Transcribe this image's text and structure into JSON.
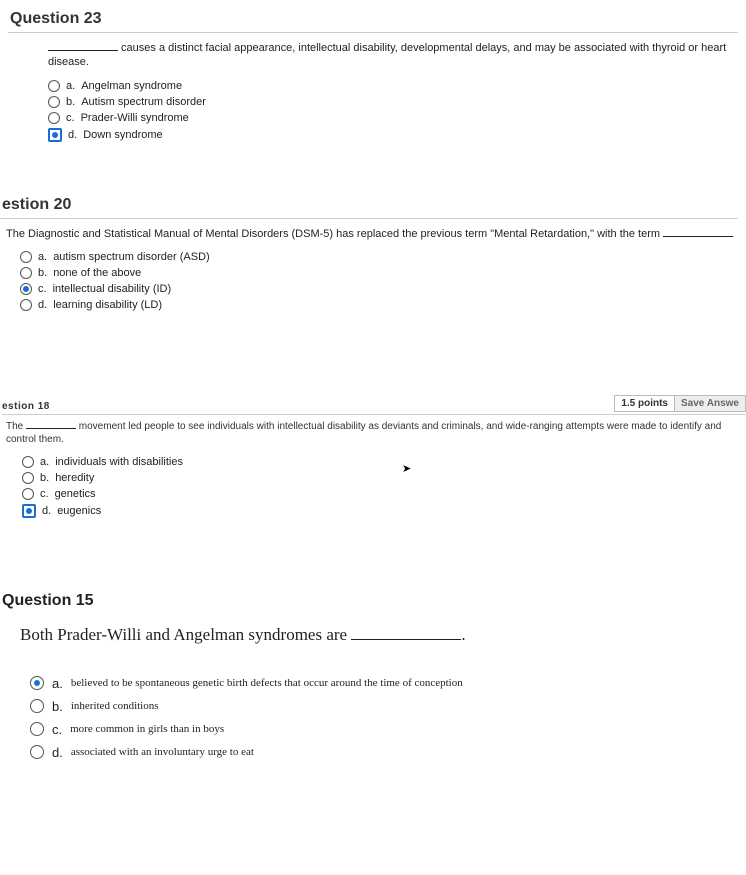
{
  "colors": {
    "accent": "#1a6dd6",
    "border": "#cccccc",
    "text": "#222222",
    "bg": "#ffffff",
    "btn_bg": "#eeeeee"
  },
  "q23": {
    "header": "Question 23",
    "prompt_prefix": "",
    "prompt_text": " causes a distinct facial appearance, intellectual disability, developmental delays, and may be associated with thyroid or heart disease.",
    "options": [
      {
        "letter": "a.",
        "label": "Angelman syndrome",
        "selected": false,
        "boxed": false
      },
      {
        "letter": "b.",
        "label": "Autism spectrum disorder",
        "selected": false,
        "boxed": false
      },
      {
        "letter": "c.",
        "label": "Prader-Willi syndrome",
        "selected": false,
        "boxed": false
      },
      {
        "letter": "d.",
        "label": "Down syndrome",
        "selected": true,
        "boxed": true
      }
    ]
  },
  "q20": {
    "header": "estion 20",
    "prompt_text": "The Diagnostic and Statistical Manual of Mental Disorders (DSM-5) has replaced the previous term \"Mental Retardation,\" with the term ",
    "options": [
      {
        "letter": "a.",
        "label": "autism spectrum disorder (ASD)",
        "selected": false,
        "boxed": false
      },
      {
        "letter": "b.",
        "label": "none of the above",
        "selected": false,
        "boxed": false
      },
      {
        "letter": "c.",
        "label": "intellectual disability (ID)",
        "selected": true,
        "boxed": false
      },
      {
        "letter": "d.",
        "label": "learning disability (LD)",
        "selected": false,
        "boxed": false
      }
    ]
  },
  "q18": {
    "header": "estion 18",
    "points": "1.5 points",
    "save": "Save Answe",
    "prompt_prefix": "The ",
    "prompt_suffix": " movement led people to see individuals with intellectual disability as deviants and criminals, and wide-ranging attempts were made to identify and control them.",
    "options": [
      {
        "letter": "a.",
        "label": "individuals with disabilities",
        "selected": false,
        "boxed": false
      },
      {
        "letter": "b.",
        "label": "heredity",
        "selected": false,
        "boxed": false
      },
      {
        "letter": "c.",
        "label": "genetics",
        "selected": false,
        "boxed": false
      },
      {
        "letter": "d.",
        "label": "eugenics",
        "selected": true,
        "boxed": true
      }
    ]
  },
  "q15": {
    "header": "Question 15",
    "prompt_prefix": "Both Prader-Willi and Angelman syndromes are ",
    "prompt_suffix": ".",
    "options": [
      {
        "letter": "a.",
        "label": "believed to be spontaneous genetic birth defects that occur around the time of conception",
        "selected": true,
        "boxed": false
      },
      {
        "letter": "b.",
        "label": "inherited conditions",
        "selected": false,
        "boxed": false
      },
      {
        "letter": "c.",
        "label": "more common in girls than in boys",
        "selected": false,
        "boxed": false
      },
      {
        "letter": "d.",
        "label": "associated with an involuntary urge to eat",
        "selected": false,
        "boxed": false
      }
    ]
  }
}
